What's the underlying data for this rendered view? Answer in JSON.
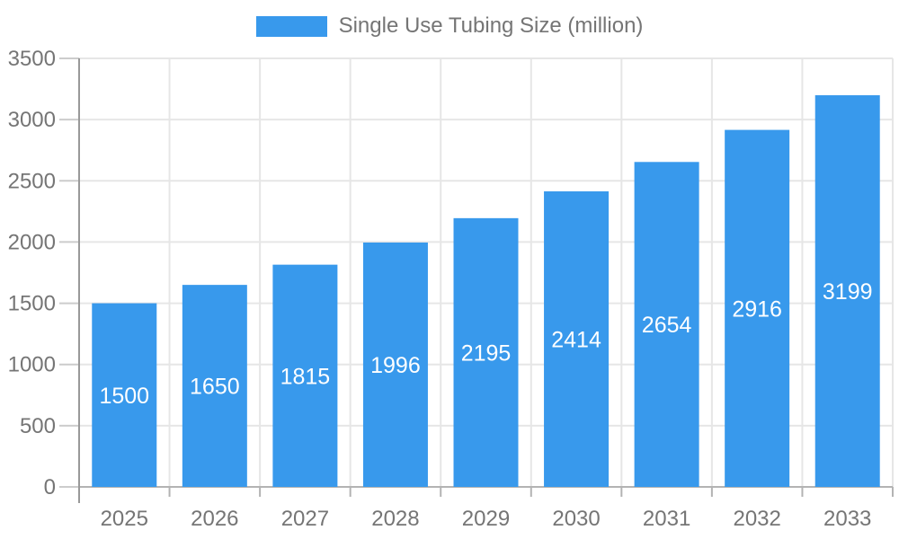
{
  "legend": {
    "label": "Single Use Tubing Size (million)"
  },
  "colors": {
    "background": "#ffffff",
    "bar": "#3899EC",
    "grid": "#e6e6e6",
    "y_axis_line": "#999999",
    "baseline": "#b3b3b3",
    "x_tick": "#b3b3b3",
    "y_tick": "#cccccc",
    "axis_text": "#757575",
    "bar_label_text": "#ffffff"
  },
  "chart_data": {
    "type": "bar",
    "title": "",
    "xlabel": "",
    "ylabel": "",
    "legend_position": "top",
    "legend_entries": [
      "Single Use Tubing Size (million)"
    ],
    "categories": [
      "2025",
      "2026",
      "2027",
      "2028",
      "2029",
      "2030",
      "2031",
      "2032",
      "2033"
    ],
    "series": [
      {
        "name": "Single Use Tubing Size (million)",
        "values": [
          1500,
          1650,
          1815,
          1996,
          2195,
          2414,
          2654,
          2916,
          3199
        ]
      }
    ],
    "bar_value_labels": [
      "1500",
      "1650",
      "1815",
      "1996",
      "2195",
      "2414",
      "2654",
      "2916",
      "3199"
    ],
    "ylim": [
      0,
      3500
    ],
    "ytick_step": 500,
    "y_tick_labels": [
      "0",
      "500",
      "1000",
      "1500",
      "2000",
      "2500",
      "3000",
      "3500"
    ],
    "grid": true
  }
}
